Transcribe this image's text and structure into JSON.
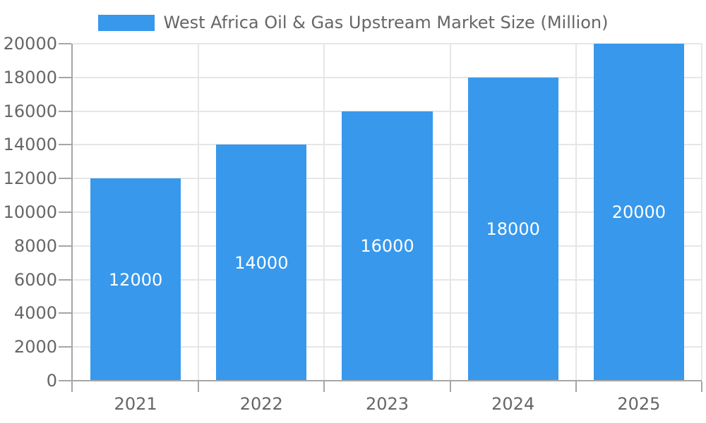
{
  "chart_data": {
    "type": "bar",
    "title": "West Africa Oil & Gas Upstream Market Size (Million)",
    "legend_label": "West Africa Oil & Gas Upstream Market Size (Million)",
    "legend_position": "top",
    "categories": [
      "2021",
      "2022",
      "2023",
      "2024",
      "2025"
    ],
    "series": [
      {
        "name": "West Africa Oil & Gas Upstream Market Size (Million)",
        "values": [
          12000,
          14000,
          16000,
          18000,
          20000
        ]
      }
    ],
    "data_labels": [
      "12000",
      "14000",
      "16000",
      "18000",
      "20000"
    ],
    "y_tick_labels": [
      "0",
      "2000",
      "4000",
      "6000",
      "8000",
      "10000",
      "12000",
      "14000",
      "16000",
      "18000",
      "20000"
    ],
    "ylim": [
      0,
      20000
    ],
    "xlabel": "",
    "ylabel": "",
    "grid": true,
    "colors": {
      "bar": "#3898ec",
      "text": "#666666",
      "grid": "#e6e6e6",
      "axis": "#a6a6a6",
      "value_label": "#ffffff",
      "background": "#ffffff"
    }
  }
}
